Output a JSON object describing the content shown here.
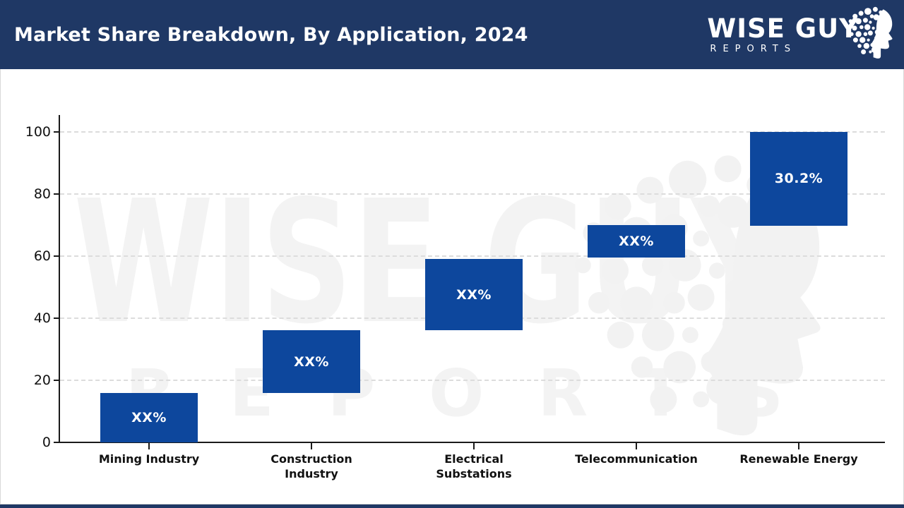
{
  "header": {
    "title": "Market Share Breakdown, By Application, 2024",
    "logo": {
      "name": "WISE GUY",
      "sub": "REPORTS"
    }
  },
  "watermark": {
    "name": "WISE GUY",
    "sub": "REPORTS"
  },
  "chart_data": {
    "type": "bar",
    "subtype": "waterfall",
    "title": "Market Share Breakdown, By Application, 2024",
    "categories": [
      "Mining Industry",
      "Construction\nIndustry",
      "Electrical\nSubstations",
      "Telecommunication",
      "Renewable Energy"
    ],
    "bars": [
      {
        "category": "Mining Industry",
        "start": 0,
        "end": 15.9,
        "label": "XX%"
      },
      {
        "category": "Construction Industry",
        "start": 15.9,
        "end": 36.1,
        "label": "XX%"
      },
      {
        "category": "Electrical Substations",
        "start": 36.1,
        "end": 59.1,
        "label": "XX%"
      },
      {
        "category": "Telecommunication",
        "start": 59.5,
        "end": 69.9,
        "label": "XX%"
      },
      {
        "category": "Renewable Energy",
        "start": 69.8,
        "end": 100,
        "label": "30.2%"
      }
    ],
    "xlabel": "",
    "ylabel": "",
    "ylim": [
      0,
      100
    ],
    "yticks": [
      0,
      20,
      40,
      60,
      80,
      100
    ],
    "grid": "horizontal-dashed",
    "legend": "none"
  },
  "colors": {
    "header_bg": "#1f3865",
    "bar": "#0d479d",
    "bar_label": "#ffffff",
    "grid": "#dcdcdc",
    "axis": "#1a1a1a",
    "watermark_text": "#f3f3f3",
    "watermark_face": "#f2f2f2",
    "frame_border": "#d9d9d9"
  }
}
